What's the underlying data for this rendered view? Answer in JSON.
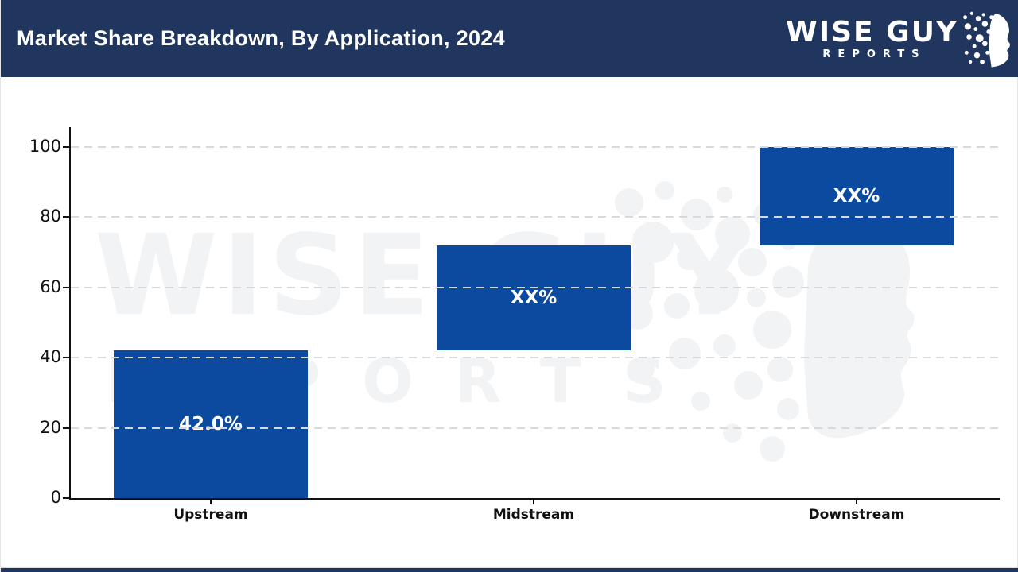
{
  "header": {
    "title": "Market Share Breakdown, By Application, 2024",
    "bg_color": "#20365F",
    "logo": {
      "line1": "WISE GUY",
      "line2": "REPORTS"
    }
  },
  "watermark": {
    "line1": "WISE GUY",
    "line2": "REPORTS"
  },
  "chart_data": {
    "type": "bar",
    "subtype": "floating-waterfall",
    "title": "Market Share Breakdown, By Application, 2024",
    "categories": [
      "Upstream",
      "Midstream",
      "Downstream"
    ],
    "segments": [
      {
        "category": "Upstream",
        "start": 0,
        "end": 42,
        "value": 42.0,
        "label": "42.0%"
      },
      {
        "category": "Midstream",
        "start": 42,
        "end": 72,
        "value": 30,
        "label": "XX%"
      },
      {
        "category": "Downstream",
        "start": 72,
        "end": 100,
        "value": 28,
        "label": "XX%"
      }
    ],
    "values": [
      42.0,
      30,
      28
    ],
    "xlabel": "",
    "ylabel": "",
    "ylim": [
      0,
      100
    ],
    "yticks": [
      0,
      20,
      40,
      60,
      80,
      100
    ],
    "grid": "horizontal-dashed",
    "legend": "none",
    "colors": {
      "bar": "#0B4A9E",
      "bar_label": "#FFFFFF",
      "grid": "#D9D9D9",
      "axis": "#111111",
      "watermark": "#F2F3F5",
      "header_bg": "#20365F"
    }
  }
}
